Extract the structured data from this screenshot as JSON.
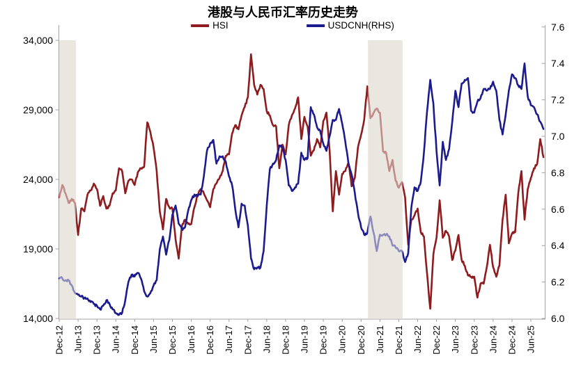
{
  "chart_data": {
    "type": "line",
    "title": "港股与人民币汇率历史走势",
    "band_color": "#EAE7E0",
    "axis_color": "#A3A3A3",
    "x_start": "Dec-2012",
    "x_interval": "monthly",
    "x_tick_labels": [
      "Dec-12",
      "Jun-13",
      "Dec-13",
      "Jun-14",
      "Dec-14",
      "Jun-15",
      "Dec-15",
      "Jun-16",
      "Dec-16",
      "Jun-17",
      "Dec-17",
      "Jun-18",
      "Dec-18",
      "Jun-19",
      "Dec-19",
      "Jun-20",
      "Dec-20",
      "Jun-21",
      "Dec-21",
      "Jun-22",
      "Dec-22",
      "Jun-23",
      "Dec-23",
      "Jun-24",
      "Dec-24",
      "Jun-25"
    ],
    "left_axis": {
      "tick_labels": [
        "34,000",
        "29,000",
        "24,000",
        "19,000",
        "14,000"
      ],
      "tick_values": [
        34000,
        29000,
        24000,
        19000,
        14000
      ],
      "min": 14000,
      "max": 35150
    },
    "right_axis": {
      "tick_labels": [
        "7.6",
        "7.4",
        "7.2",
        "7.0",
        "6.8",
        "6.6",
        "6.4",
        "6.2",
        "6.0"
      ],
      "tick_values": [
        7.6,
        7.4,
        7.2,
        7.0,
        6.8,
        6.6,
        6.4,
        6.2,
        6.0
      ],
      "min": 6.0,
      "max": 7.61
    },
    "highlight_bands": [
      {
        "start_month_index": 0,
        "end_month_index": 5.3
      },
      {
        "start_month_index": 98.2,
        "end_month_index": 109.2
      }
    ],
    "series": [
      {
        "name": "HSI",
        "axis": "left",
        "color": "#8E1B1E",
        "monthly_values": [
          22700,
          23600,
          23000,
          22300,
          22600,
          22300,
          20000,
          21900,
          21700,
          22900,
          23200,
          23700,
          23300,
          22100,
          22800,
          21900,
          22100,
          23000,
          23200,
          24800,
          24600,
          23000,
          23900,
          24000,
          23600,
          24500,
          24800,
          24900,
          28100,
          27400,
          26300,
          24600,
          21700,
          20400,
          22600,
          22000,
          21900,
          19700,
          18300,
          20600,
          21100,
          20800,
          20800,
          22000,
          22900,
          23300,
          23000,
          22500,
          22000,
          23300,
          23700,
          24100,
          24600,
          25700,
          25800,
          27300,
          27900,
          27600,
          28600,
          29200,
          29900,
          33000,
          30800,
          30100,
          30800,
          30500,
          28900,
          28600,
          27900,
          27800,
          24800,
          26500,
          25800,
          27900,
          28600,
          29100,
          29900,
          26900,
          28500,
          27800,
          25700,
          26100,
          26900,
          26300,
          28200,
          28800,
          26100,
          21700,
          24600,
          22900,
          24400,
          24600,
          25200,
          23500,
          24100,
          26300,
          27200,
          28300,
          30700,
          28400,
          28800,
          29100,
          28800,
          26000,
          25900,
          24600,
          25400,
          23900,
          23400,
          23800,
          22700,
          19300,
          21100,
          21400,
          21900,
          20200,
          19900,
          17200,
          14700,
          18600,
          19800,
          22500,
          19800,
          20300,
          19900,
          18200,
          18900,
          20000,
          18200,
          17800,
          17100,
          17000,
          17000,
          15500,
          16500,
          16500,
          17700,
          19300,
          17700,
          17000,
          17800,
          21100,
          22900,
          19400,
          20100,
          20200,
          23000,
          24600,
          21100,
          23300,
          24100,
          24800,
          25100,
          26900,
          25600
        ]
      },
      {
        "name": "USDCNH(RHS)",
        "axis": "right",
        "color": "#1B1B8F",
        "monthly_values": [
          6.22,
          6.22,
          6.21,
          6.21,
          6.18,
          6.14,
          6.13,
          6.12,
          6.11,
          6.11,
          6.09,
          6.08,
          6.07,
          6.05,
          6.07,
          6.1,
          6.08,
          6.05,
          6.03,
          6.02,
          6.03,
          6.1,
          6.2,
          6.24,
          6.23,
          6.25,
          6.22,
          6.15,
          6.12,
          6.14,
          6.18,
          6.21,
          6.38,
          6.45,
          6.35,
          6.43,
          6.57,
          6.62,
          6.52,
          6.49,
          6.5,
          6.59,
          6.65,
          6.68,
          6.67,
          6.68,
          6.78,
          6.92,
          6.96,
          6.98,
          6.85,
          6.89,
          6.89,
          6.86,
          6.78,
          6.73,
          6.6,
          6.5,
          6.63,
          6.62,
          6.51,
          6.33,
          6.27,
          6.28,
          6.28,
          6.37,
          6.62,
          6.82,
          6.85,
          6.87,
          6.95,
          6.94,
          6.87,
          6.73,
          6.7,
          6.72,
          6.74,
          6.91,
          6.87,
          6.88,
          7.16,
          7.12,
          7.05,
          7.03,
          6.96,
          6.92,
          7.0,
          7.09,
          7.09,
          7.15,
          7.07,
          6.97,
          6.85,
          6.79,
          6.69,
          6.58,
          6.5,
          6.46,
          6.47,
          6.56,
          6.47,
          6.37,
          6.46,
          6.46,
          6.46,
          6.45,
          6.4,
          6.39,
          6.37,
          6.37,
          6.31,
          6.36,
          6.61,
          6.72,
          6.7,
          6.75,
          6.91,
          7.14,
          7.31,
          7.18,
          6.92,
          6.73,
          6.97,
          6.87,
          6.93,
          7.08,
          7.25,
          7.16,
          7.29,
          7.31,
          7.32,
          7.14,
          7.13,
          7.19,
          7.21,
          7.26,
          7.25,
          7.26,
          7.3,
          7.25,
          7.09,
          7.01,
          7.12,
          7.25,
          7.34,
          7.32,
          7.28,
          7.26,
          7.4,
          7.22,
          7.17,
          7.16,
          7.12,
          7.08,
          7.04
        ]
      }
    ]
  }
}
